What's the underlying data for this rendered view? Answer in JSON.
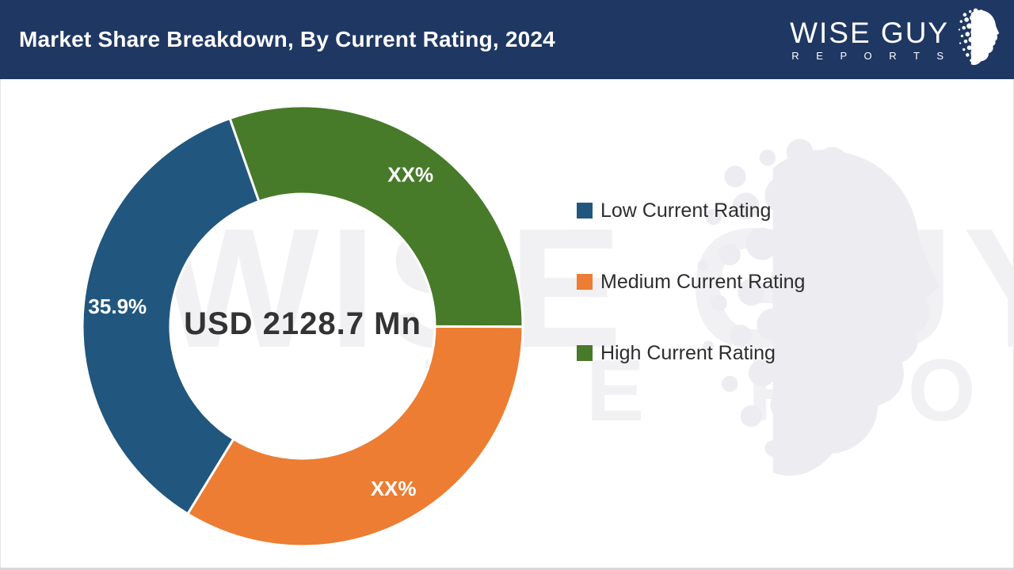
{
  "header": {
    "title": "Market Share Breakdown, By Current Rating, 2024",
    "logo": {
      "name": "WISE GUY",
      "tagline": "R E P O R T S"
    }
  },
  "chart_data": {
    "type": "pie",
    "subtype": "donut",
    "title": "Market Share Breakdown, By Current Rating, 2024",
    "center_label": "USD 2128.7 Mn",
    "start_angle_deg": -19.3,
    "slices": [
      {
        "name": "High Current Rating",
        "value": 30.4,
        "label": "XX%",
        "color": "#477A29"
      },
      {
        "name": "Medium Current Rating",
        "value": 33.7,
        "label": "XX%",
        "color": "#EC7D33"
      },
      {
        "name": "Low Current Rating",
        "value": 35.9,
        "label": "35.9%",
        "color": "#21567E"
      }
    ],
    "legend_position": "right"
  },
  "legend": {
    "items": [
      {
        "label": "Low Current Rating",
        "color": "#21567E"
      },
      {
        "label": "Medium Current Rating",
        "color": "#EC7D33"
      },
      {
        "label": "High Current Rating",
        "color": "#477A29"
      }
    ]
  },
  "watermark": {
    "line1": "WISE GUY",
    "line2": "R E P O R T S"
  },
  "colors": {
    "header_bg": "#1F3763",
    "center_text": "#333333",
    "legend_text": "#2D2D2D"
  }
}
